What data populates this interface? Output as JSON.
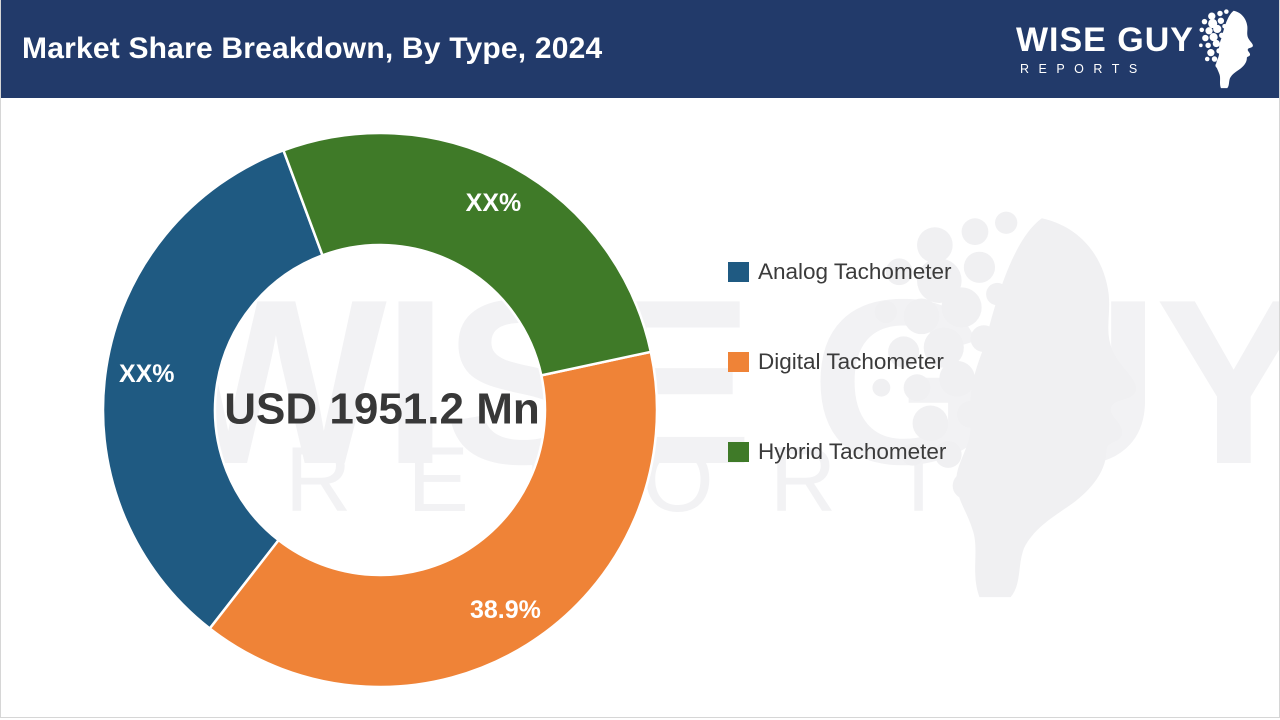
{
  "header": {
    "title": "Market Share Breakdown, By Type, 2024",
    "logo": {
      "line1": "WISE GUY",
      "line2": "REPORTS",
      "icon": "dot-face-profile"
    }
  },
  "watermark": {
    "line1": "WISE GUY",
    "line2": "REPORTS",
    "icon": "dot-face-profile"
  },
  "chart_data": {
    "type": "pie",
    "subtype": "donut",
    "title": "Market Share Breakdown, By Type, 2024",
    "center_label": "USD 1951.2 Mn",
    "slices": [
      {
        "name": "Analog Tachometer",
        "value_pct": 33.8,
        "label": "XX%",
        "color": "#1F5A82"
      },
      {
        "name": "Digital Tachometer",
        "value_pct": 38.9,
        "label": "38.9%",
        "color": "#EF8337"
      },
      {
        "name": "Hybrid Tachometer",
        "value_pct": 27.3,
        "label": "XX%",
        "color": "#3F7A28"
      }
    ],
    "start_angle_deg": 110.4,
    "direction": "counterclockwise",
    "inner_radius_ratio": 0.6,
    "legend_position": "right",
    "note": "Non-disclosed slice values are masked as XX% in the source graphic"
  },
  "colors": {
    "header_bg": "#223A6A",
    "text_dark": "#3B3B3B",
    "watermark": "#F2F2F4",
    "page_border": "#D6D6D6",
    "slice_gap": "#FFFFFF"
  }
}
